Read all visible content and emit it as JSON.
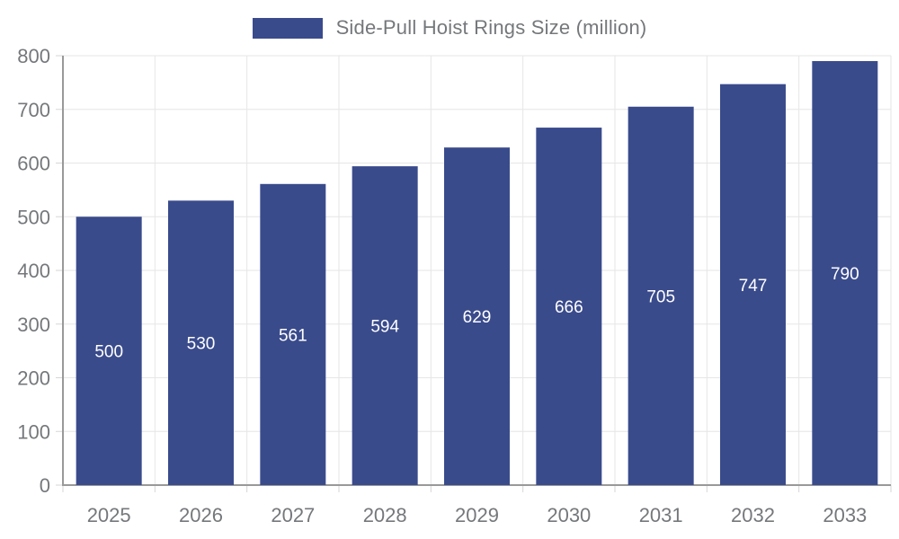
{
  "legend": {
    "label": "Side-Pull Hoist Rings Size (million)"
  },
  "chart_data": {
    "type": "bar",
    "title": "Side-Pull Hoist Rings Size (million)",
    "series_name": "Side-Pull Hoist Rings Size (million)",
    "categories": [
      "2025",
      "2026",
      "2027",
      "2028",
      "2029",
      "2030",
      "2031",
      "2032",
      "2033"
    ],
    "values": [
      500,
      530,
      561,
      594,
      629,
      666,
      705,
      747,
      790
    ],
    "bar_labels": [
      "500",
      "530",
      "561",
      "594",
      "629",
      "666",
      "705",
      "747",
      "790"
    ],
    "xlabel": "",
    "ylabel": "",
    "ylim": [
      0,
      800
    ],
    "yticks": [
      0,
      100,
      200,
      300,
      400,
      500,
      600,
      700,
      800
    ],
    "grid": true,
    "legend_position": "top-center",
    "colors": {
      "bar": "#3A4B8C",
      "bar_label": "#ffffff",
      "axis_text": "#75787b",
      "grid_line": "#e6e6e6",
      "axis_line": "#999999",
      "tick_line": "#d6d6d6",
      "background": "#ffffff"
    }
  }
}
